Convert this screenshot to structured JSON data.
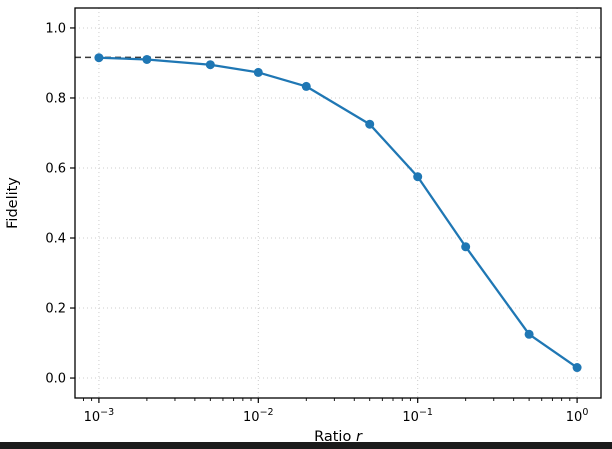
{
  "figure": {
    "background": "#ffffff",
    "bottom_bar_color": "#1b1b1b"
  },
  "chart_data": {
    "type": "line",
    "xscale": "log",
    "title": "",
    "xlabel_prefix": "Ratio ",
    "xlabel_var": "r",
    "ylabel": "Fidelity",
    "x": [
      0.001,
      0.002,
      0.005,
      0.01,
      0.02,
      0.05,
      0.1,
      0.2,
      0.5,
      1.0
    ],
    "series": [
      {
        "name": "fidelity-curve",
        "color": "#1f77b4",
        "marker": "circle",
        "values": [
          0.915,
          0.91,
          0.895,
          0.873,
          0.833,
          0.725,
          0.575,
          0.375,
          0.125,
          0.03
        ]
      }
    ],
    "reference_line": {
      "y": 0.916,
      "color": "#3a3a3a",
      "dash": [
        6,
        4
      ]
    },
    "xlim_log": [
      -3.15,
      0.15
    ],
    "ylim": [
      -0.057,
      1.057
    ],
    "x_tick_exponents": [
      -3,
      -2,
      -1,
      0
    ],
    "y_tick_values": [
      0.0,
      0.2,
      0.4,
      0.6,
      0.8,
      1.0
    ],
    "y_tick_labels": [
      "0.0",
      "0.2",
      "0.4",
      "0.6",
      "0.8",
      "1.0"
    ],
    "grid": true,
    "grid_color": "#cdcdcd",
    "axis_color": "#000000"
  }
}
